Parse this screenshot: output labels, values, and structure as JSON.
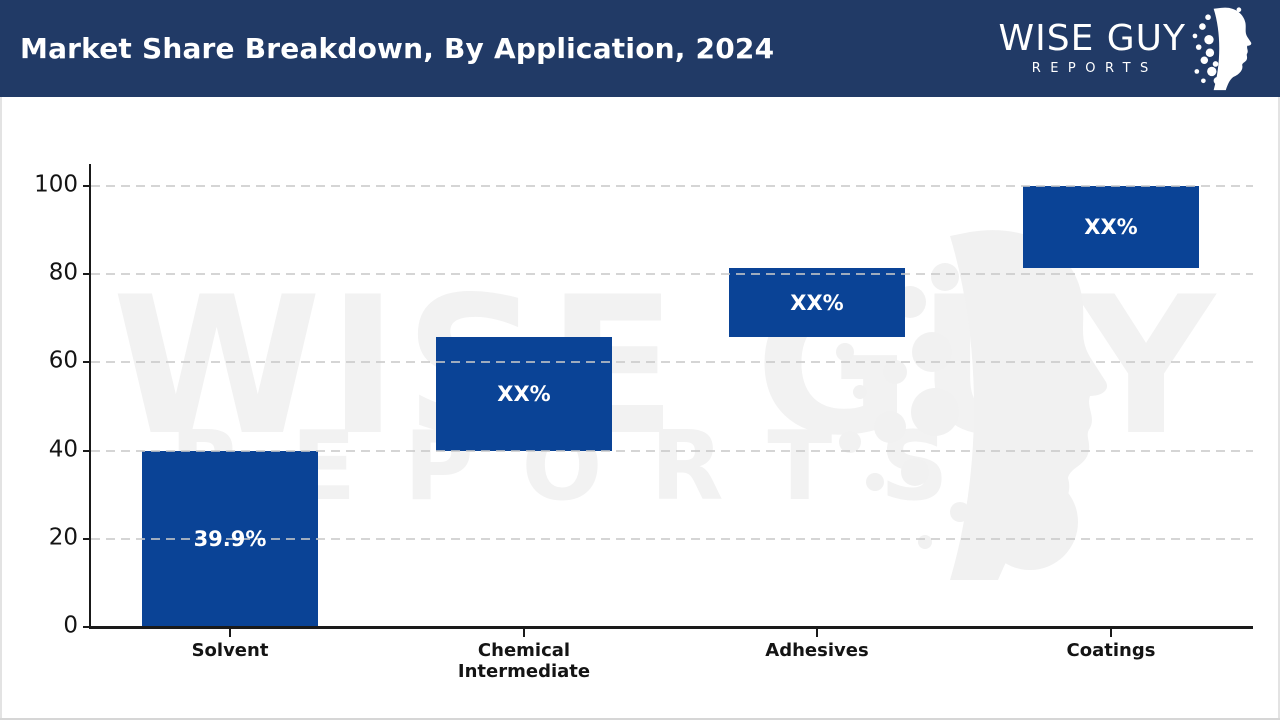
{
  "header": {
    "title": "Market Share Breakdown, By Application, 2024",
    "bg_color": "#213A66",
    "logo": {
      "line1": "WISE GUY",
      "line2": "REPORTS"
    }
  },
  "watermark": {
    "line1": "WISE GUY",
    "line2": "REPORTS"
  },
  "chart_data": {
    "type": "bar",
    "subtype": "waterfall",
    "title": "Market Share Breakdown, By Application, 2024",
    "xlabel": "",
    "ylabel": "",
    "ylim": [
      0,
      100
    ],
    "yticks": [
      0,
      20,
      40,
      60,
      80,
      100
    ],
    "grid": "horizontal-dashed",
    "legend": "none",
    "bar_color": "#0A4396",
    "value_label_color": "#ffffff",
    "categories": [
      "Solvent",
      "Chemical\nIntermediate",
      "Adhesives",
      "Coatings"
    ],
    "segments": [
      {
        "category": "Solvent",
        "start": 0,
        "end": 39.9,
        "size": 39.9,
        "label": "39.9%"
      },
      {
        "category": "Chemical Intermediate",
        "start": 39.9,
        "end": 65.8,
        "size": 25.9,
        "label": "XX%"
      },
      {
        "category": "Adhesives",
        "start": 65.8,
        "end": 81.3,
        "size": 15.5,
        "label": "XX%"
      },
      {
        "category": "Coatings",
        "start": 81.3,
        "end": 100,
        "size": 18.7,
        "label": "XX%"
      }
    ]
  }
}
